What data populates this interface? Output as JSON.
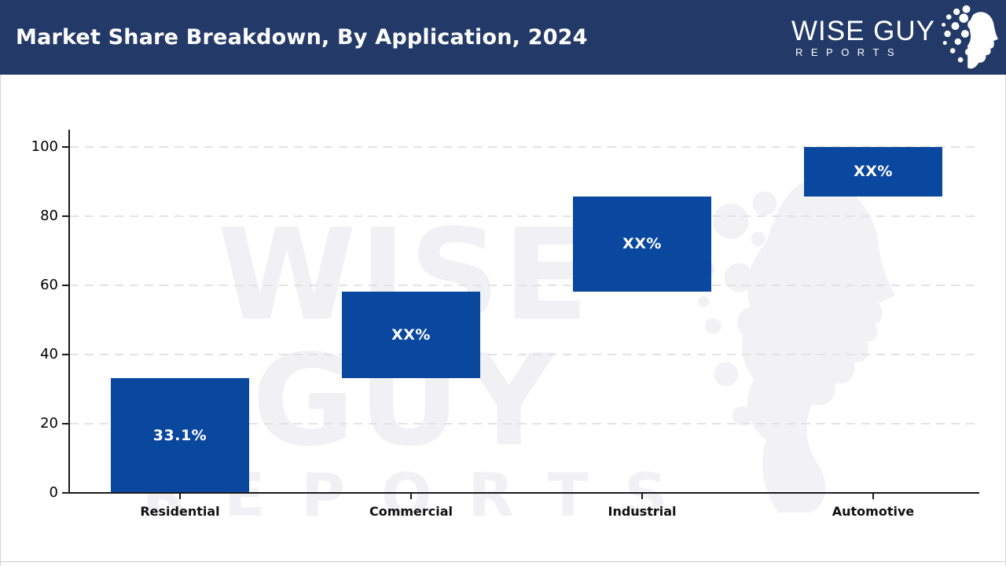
{
  "header": {
    "title": "Market Share Breakdown, By Application, 2024",
    "logo": {
      "line1": "WISE GUY",
      "line2": "REPORTS"
    }
  },
  "watermark": {
    "line1": "WISE GUY",
    "line2": "REPORTS"
  },
  "colors": {
    "header_bg": "#233a68",
    "bar": "#0a479e",
    "grid": "#e3e3e3",
    "watermark": "#f1f1f3",
    "axis": "#1a1a1a"
  },
  "chart_data": {
    "type": "bar",
    "subtype": "waterfall",
    "title": "Market Share Breakdown, By Application, 2024",
    "xlabel": "",
    "ylabel": "",
    "categories": [
      "Residential",
      "Commercial",
      "Industrial",
      "Automotive"
    ],
    "segments": [
      {
        "category": "Residential",
        "start": 0,
        "end": 33.1,
        "label": "33.1%"
      },
      {
        "category": "Commercial",
        "start": 33.1,
        "end": 58.2,
        "label": "XX%"
      },
      {
        "category": "Industrial",
        "start": 58.2,
        "end": 85.7,
        "label": "XX%"
      },
      {
        "category": "Automotive",
        "start": 85.7,
        "end": 100,
        "label": "XX%"
      }
    ],
    "yticks": [
      0,
      20,
      40,
      60,
      80,
      100
    ],
    "ylim": [
      0,
      100
    ],
    "grid": "horizontal-dashed",
    "legend": "none",
    "bar_color": "#0a479e"
  }
}
